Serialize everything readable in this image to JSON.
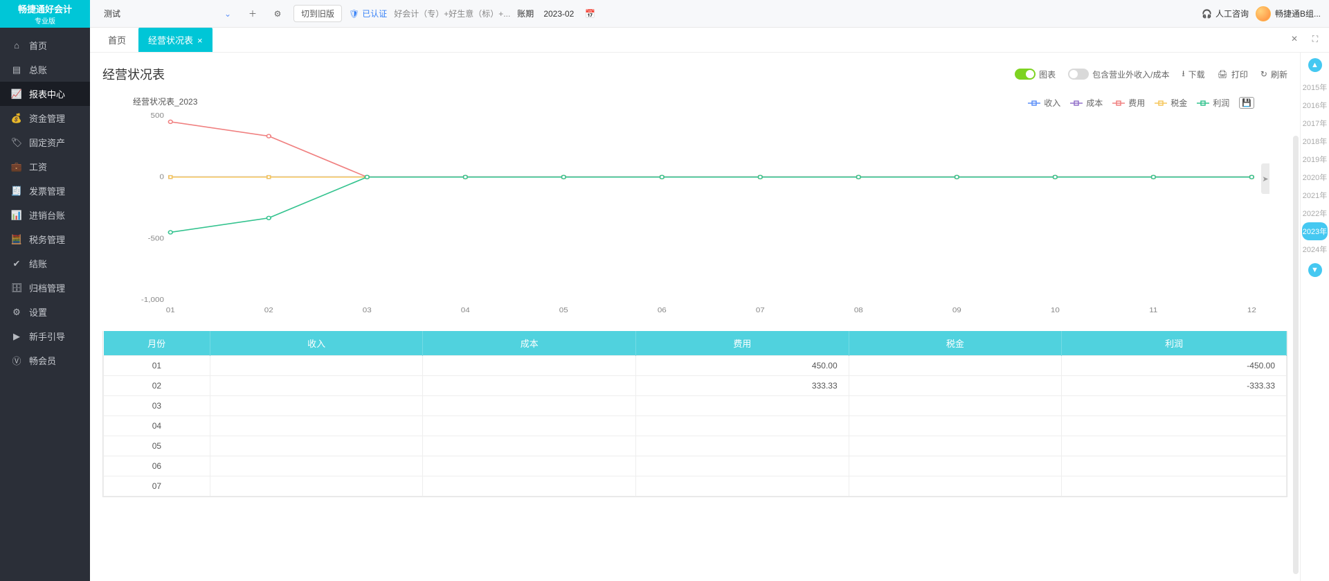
{
  "brand": {
    "name": "畅捷通好会计",
    "edition": "专业版"
  },
  "sidebar": {
    "items": [
      {
        "label": "首页"
      },
      {
        "label": "总账"
      },
      {
        "label": "报表中心"
      },
      {
        "label": "资金管理"
      },
      {
        "label": "固定资产"
      },
      {
        "label": "工资"
      },
      {
        "label": "发票管理"
      },
      {
        "label": "进销台账"
      },
      {
        "label": "税务管理"
      },
      {
        "label": "结账"
      },
      {
        "label": "归档管理"
      },
      {
        "label": "设置"
      },
      {
        "label": "新手引导"
      },
      {
        "label": "畅会员"
      }
    ],
    "active_index": 2
  },
  "topbar": {
    "org": "测试",
    "switch_old": "切到旧版",
    "authed": "已认证",
    "plan": "好会计（专）+好生意（标）+...",
    "period_label": "账期",
    "period_value": "2023-02",
    "support": "人工咨询",
    "user": "畅捷通B组..."
  },
  "tabs": {
    "items": [
      {
        "label": "首页",
        "closable": false
      },
      {
        "label": "经营状况表",
        "closable": true
      }
    ],
    "active_index": 1
  },
  "page": {
    "title": "经营状况表",
    "toolbar": {
      "chart_toggle_label": "图表",
      "include_label": "包含营业外收入/成本",
      "download": "下载",
      "print": "打印",
      "refresh": "刷新"
    }
  },
  "chart": {
    "type": "line",
    "title": "经营状况表_2023",
    "categories": [
      "01",
      "02",
      "03",
      "04",
      "05",
      "06",
      "07",
      "08",
      "09",
      "10",
      "11",
      "12"
    ],
    "series": [
      {
        "name": "收入",
        "color": "#5b8ff9",
        "marker": "square-open",
        "values": [
          0,
          0,
          0,
          0,
          0,
          0,
          0,
          0,
          0,
          0,
          0,
          0
        ]
      },
      {
        "name": "成本",
        "color": "#9270ca",
        "marker": "square-open",
        "values": [
          0,
          0,
          0,
          0,
          0,
          0,
          0,
          0,
          0,
          0,
          0,
          0
        ]
      },
      {
        "name": "费用",
        "color": "#f08080",
        "marker": "circle-open",
        "values": [
          450,
          333.33,
          0,
          0,
          0,
          0,
          0,
          0,
          0,
          0,
          0,
          0
        ]
      },
      {
        "name": "税金",
        "color": "#f6c65b",
        "marker": "square-open",
        "values": [
          0,
          0,
          0,
          0,
          0,
          0,
          0,
          0,
          0,
          0,
          0,
          0
        ]
      },
      {
        "name": "利润",
        "color": "#34c38f",
        "marker": "circle-open",
        "values": [
          -450,
          -333.33,
          0,
          0,
          0,
          0,
          0,
          0,
          0,
          0,
          0,
          0
        ]
      }
    ],
    "yticks": [
      -1000,
      -500,
      0,
      500
    ],
    "ylim": [
      -1000,
      500
    ],
    "background_color": "#ffffff",
    "axis_color": "#888888",
    "tick_font_size": 10,
    "line_width": 1.6,
    "marker_size": 4
  },
  "table": {
    "columns": [
      "月份",
      "收入",
      "成本",
      "费用",
      "税金",
      "利润"
    ],
    "col_widths_pct": [
      9,
      18,
      18,
      18,
      18,
      19
    ],
    "rows": [
      {
        "month": "01",
        "income": "",
        "cost": "",
        "expense": "450.00",
        "tax": "",
        "profit": "-450.00"
      },
      {
        "month": "02",
        "income": "",
        "cost": "",
        "expense": "333.33",
        "tax": "",
        "profit": "-333.33"
      },
      {
        "month": "03",
        "income": "",
        "cost": "",
        "expense": "",
        "tax": "",
        "profit": ""
      },
      {
        "month": "04",
        "income": "",
        "cost": "",
        "expense": "",
        "tax": "",
        "profit": ""
      },
      {
        "month": "05",
        "income": "",
        "cost": "",
        "expense": "",
        "tax": "",
        "profit": ""
      },
      {
        "month": "06",
        "income": "",
        "cost": "",
        "expense": "",
        "tax": "",
        "profit": ""
      },
      {
        "month": "07",
        "income": "",
        "cost": "",
        "expense": "",
        "tax": "",
        "profit": ""
      }
    ]
  },
  "year_rail": {
    "years": [
      "2015年",
      "2016年",
      "2017年",
      "2018年",
      "2019年",
      "2020年",
      "2021年",
      "2022年",
      "2023年",
      "2024年"
    ],
    "active_index": 8
  }
}
